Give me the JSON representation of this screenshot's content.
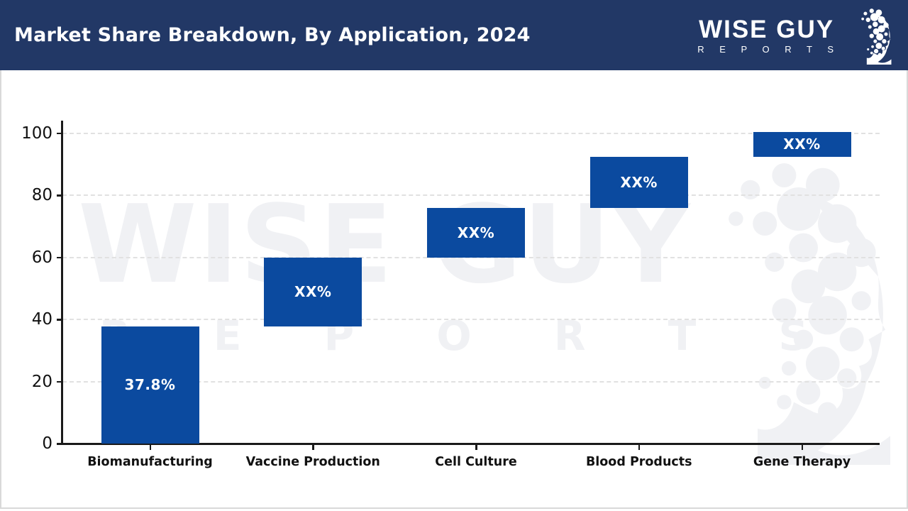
{
  "header": {
    "title": "Market Share Breakdown, By Application, 2024",
    "bg_color": "#223866",
    "logo": {
      "line1": "WISE GUY",
      "line2": "R E P O R T S"
    }
  },
  "watermark": {
    "line1": "WISE GUY",
    "line2": "R E P O R T S"
  },
  "chart_data": {
    "type": "bar",
    "subtype": "waterfall",
    "title": "Market Share Breakdown, By Application, 2024",
    "xlabel": "",
    "ylabel": "",
    "ylim": [
      0,
      105
    ],
    "yticks": [
      0,
      20,
      40,
      60,
      80,
      100
    ],
    "grid": "horizontal-dashed",
    "legend": "none",
    "bar_color": "#0b4a9f",
    "value_label_color": "#ffffff",
    "categories": [
      "Biomanufacturing",
      "Vaccine Production",
      "Cell Culture",
      "Blood Products",
      "Gene Therapy"
    ],
    "bars": [
      {
        "category": "Biomanufacturing",
        "start": 0,
        "end": 37.8,
        "label": "37.8%"
      },
      {
        "category": "Vaccine Production",
        "start": 37.8,
        "end": 60.0,
        "label": "XX%"
      },
      {
        "category": "Cell Culture",
        "start": 60.0,
        "end": 76.0,
        "label": "XX%"
      },
      {
        "category": "Blood Products",
        "start": 76.0,
        "end": 92.3,
        "label": "XX%"
      },
      {
        "category": "Gene Therapy",
        "start": 92.3,
        "end": 100.4,
        "label": "XX%"
      }
    ]
  }
}
